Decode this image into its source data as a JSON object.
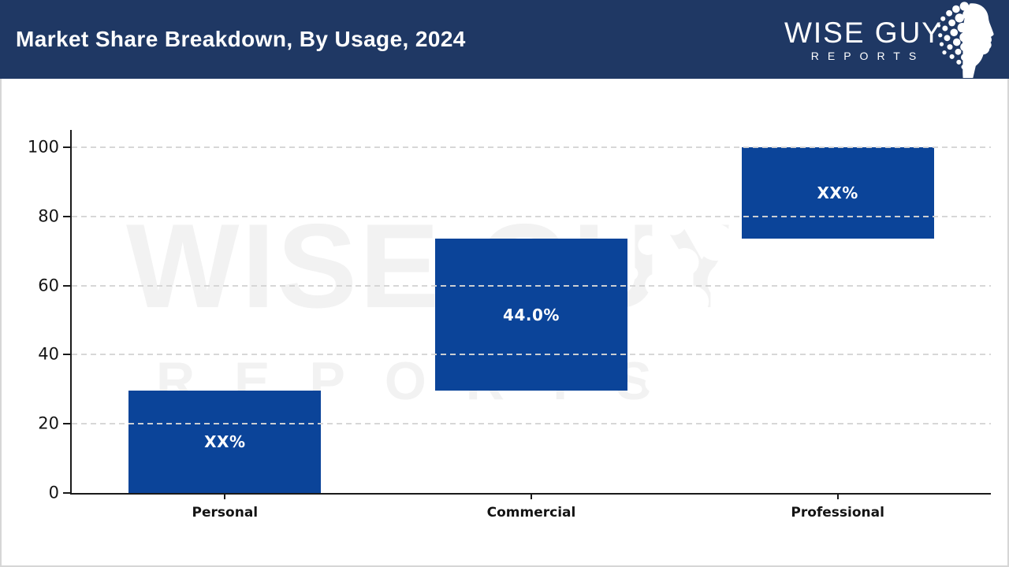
{
  "header": {
    "bg_color": "#1f3864",
    "logo": {
      "line1": "WISE GUY",
      "line2": "REPORTS"
    }
  },
  "watermark": {
    "line1": "WISE GUY",
    "line2": "REPORTS"
  },
  "chart_data": {
    "type": "bar",
    "subtype": "floating-segment-waterfall",
    "title": "Market Share Breakdown, By Usage, 2024",
    "categories": [
      "Personal",
      "Commercial",
      "Professional"
    ],
    "segments": [
      {
        "category": "Personal",
        "start": 0,
        "end": 29.5,
        "label": "XX%"
      },
      {
        "category": "Commercial",
        "start": 29.5,
        "end": 73.5,
        "label": "44.0%"
      },
      {
        "category": "Professional",
        "start": 73.5,
        "end": 100,
        "label": "XX%"
      }
    ],
    "yticks": [
      0,
      20,
      40,
      60,
      80,
      100
    ],
    "ylim": [
      0,
      105
    ],
    "xlabel": "",
    "ylabel": "",
    "grid": "horizontal-dashed",
    "legend": "none",
    "bar_color": "#0b4499",
    "bar_label_color": "#ffffff",
    "axis_color": "#1a1a1a",
    "grid_color": "#d5d5d5",
    "watermark_color": "#f2f2f2"
  }
}
